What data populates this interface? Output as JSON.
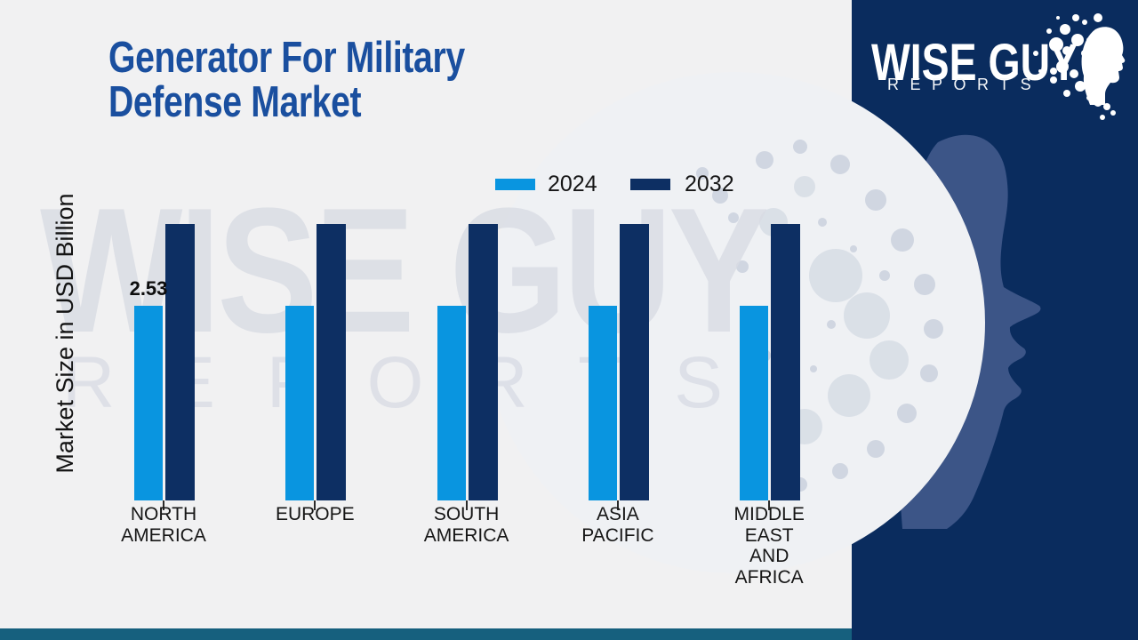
{
  "title": {
    "text": "Generator For Military Defense Market"
  },
  "logo": {
    "line1": "WISE GUY",
    "line2": "REPORTS"
  },
  "watermark": {
    "line1": "WISE GUY",
    "line2": "REPORTS"
  },
  "ylabel": "Market Size in USD Billion",
  "legend": [
    {
      "label": "2024",
      "color": "#0995e0"
    },
    {
      "label": "2032",
      "color": "#0d2f63"
    }
  ],
  "chart_data": {
    "type": "bar",
    "title": "Generator For Military Defense Market",
    "xlabel": "",
    "ylabel": "Market Size in USD Billion",
    "categories": [
      "NORTH AMERICA",
      "EUROPE",
      "SOUTH AMERICA",
      "ASIA PACIFIC",
      "MIDDLE EAST AND AFRICA"
    ],
    "categories_lines": [
      [
        "NORTH",
        "AMERICA"
      ],
      [
        "EUROPE"
      ],
      [
        "SOUTH",
        "AMERICA"
      ],
      [
        "ASIA",
        "PACIFIC"
      ],
      [
        "MIDDLE",
        "EAST",
        "AND",
        "AFRICA"
      ]
    ],
    "series": [
      {
        "name": "2024",
        "color": "#0995e0",
        "values": [
          2.53,
          null,
          null,
          null,
          null
        ]
      },
      {
        "name": "2032",
        "color": "#0d2f63",
        "values": [
          null,
          null,
          null,
          null,
          null
        ]
      }
    ],
    "value_labels": [
      {
        "category": "NORTH AMERICA",
        "series": "2024",
        "text": "2.53"
      }
    ],
    "legend_position": "top",
    "grid": false,
    "axis_ticks_shown": false,
    "note": "Stylized infographic: all bars are drawn at identical heights per series; only the first 2024 bar carries a printed value (2.53, in USD Billion)."
  },
  "colors": {
    "background": "#f1f1f2",
    "panel_navy": "#0a2c5e",
    "bar_2024": "#0995e0",
    "bar_2032": "#0d2f63",
    "accent_teal_bar": "#16607e",
    "title_blue": "#1a4f9f",
    "watermark_gray": "#d9dce4",
    "face_slate_blue": "#3c5587",
    "text_dark": "#161616"
  }
}
